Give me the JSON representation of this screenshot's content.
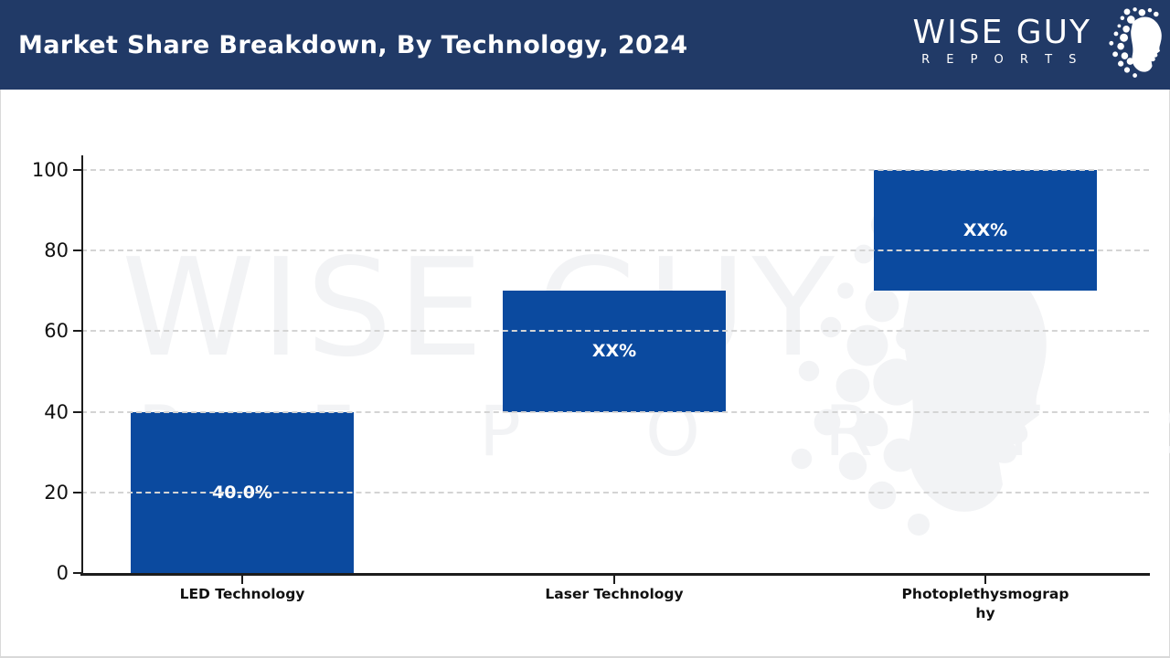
{
  "header": {
    "title": "Market Share Breakdown, By Technology, 2024",
    "logo": {
      "brand_line1": "WISE GUY",
      "brand_line2": "R E P O R T S"
    }
  },
  "watermark": {
    "line1": "WISE GUY",
    "line2": "R E P O R T S"
  },
  "colors": {
    "header_bg": "#213A67",
    "bar": "#0B4A9F",
    "axis": "#1C1C1C",
    "gridline": "#D4D4D4",
    "tick_label": "#111111",
    "bar_label": "#FFFFFF",
    "watermark": "#F2F3F5"
  },
  "chart_data": {
    "type": "bar",
    "variant": "waterfall",
    "title": "Market Share Breakdown, By Technology, 2024",
    "categories": [
      "LED Technology",
      "Laser Technology",
      "Photoplethysmography"
    ],
    "category_tick_display": [
      "LED Technology",
      "Laser Technology",
      "Photoplethysmograp\nhy"
    ],
    "series": [
      {
        "name": "Market Share",
        "segments": [
          {
            "category": "LED Technology",
            "start": 0,
            "end": 40,
            "label": "40.0%"
          },
          {
            "category": "Laser Technology",
            "start": 40,
            "end": 70,
            "label": "XX%"
          },
          {
            "category": "Photoplethysmography",
            "start": 70,
            "end": 100,
            "label": "XX%"
          }
        ]
      }
    ],
    "ylim": [
      0,
      100
    ],
    "yticks": [
      0,
      20,
      40,
      60,
      80,
      100
    ],
    "grid": "horizontal-dashed",
    "legend": "none",
    "xlabel": "",
    "ylabel": ""
  }
}
